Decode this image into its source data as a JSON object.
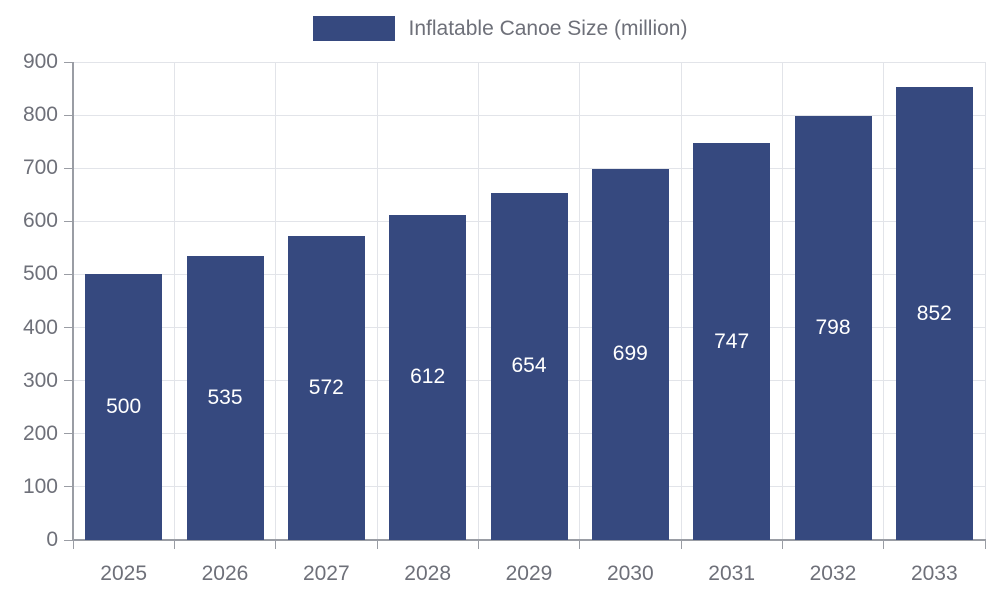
{
  "legend": {
    "label": "Inflatable Canoe Size (million)",
    "position": "top-center"
  },
  "chart_data": {
    "type": "bar",
    "title": "Inflatable Canoe Size (million)",
    "categories": [
      "2025",
      "2026",
      "2027",
      "2028",
      "2029",
      "2030",
      "2031",
      "2032",
      "2033"
    ],
    "series": [
      {
        "name": "Inflatable Canoe Size (million)",
        "values": [
          500,
          535,
          572,
          612,
          654,
          699,
          747,
          798,
          852
        ]
      }
    ],
    "value_labels": "inside-center-white",
    "xlabel": "",
    "ylabel": "",
    "ylim": [
      0,
      900
    ],
    "yticks": [
      0,
      100,
      200,
      300,
      400,
      500,
      600,
      700,
      800,
      900
    ],
    "grid": true,
    "legend_position": "top"
  },
  "colors": {
    "bar": "#36497F",
    "grid": "#e2e4e9",
    "axis": "#9a9da4",
    "axis_label": "#6e7079",
    "legend_text": "#6e7079",
    "value_label": "#ffffff",
    "background": "#ffffff"
  }
}
